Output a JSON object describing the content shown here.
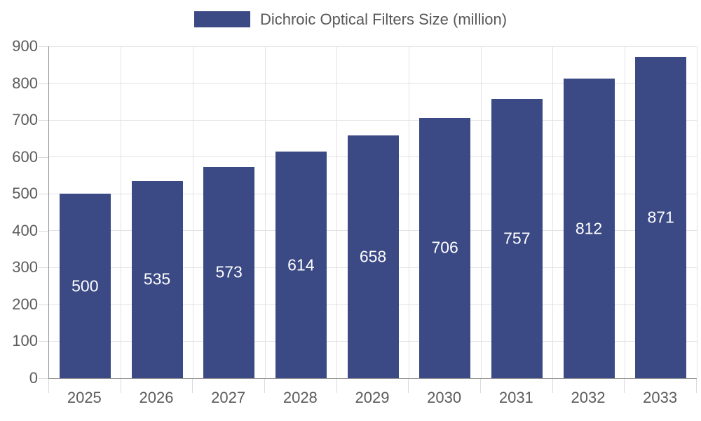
{
  "chart_data": {
    "type": "bar",
    "title": "Dichroic Optical Filters Size (million)",
    "legend_label": "Dichroic Optical Filters Size (million)",
    "legend_position": "top",
    "categories": [
      "2025",
      "2026",
      "2027",
      "2028",
      "2029",
      "2030",
      "2031",
      "2032",
      "2033"
    ],
    "values": [
      500,
      535,
      573,
      614,
      658,
      706,
      757,
      812,
      871
    ],
    "xlabel": "",
    "ylabel": "",
    "ylim": [
      0,
      900
    ],
    "ytick_step": 100,
    "ytick_labels": [
      "0",
      "100",
      "200",
      "300",
      "400",
      "500",
      "600",
      "700",
      "800",
      "900"
    ],
    "grid": true,
    "value_labels_inside_bars": true
  },
  "colors": {
    "bar": "#3b4985",
    "value_label": "#ffffff",
    "axis_line": "#929292",
    "gridline": "#e3e3e3",
    "tick": "#d9d9e2",
    "tick_label": "#5c5c5c",
    "legend_text": "#595959",
    "background": "#ffffff"
  }
}
